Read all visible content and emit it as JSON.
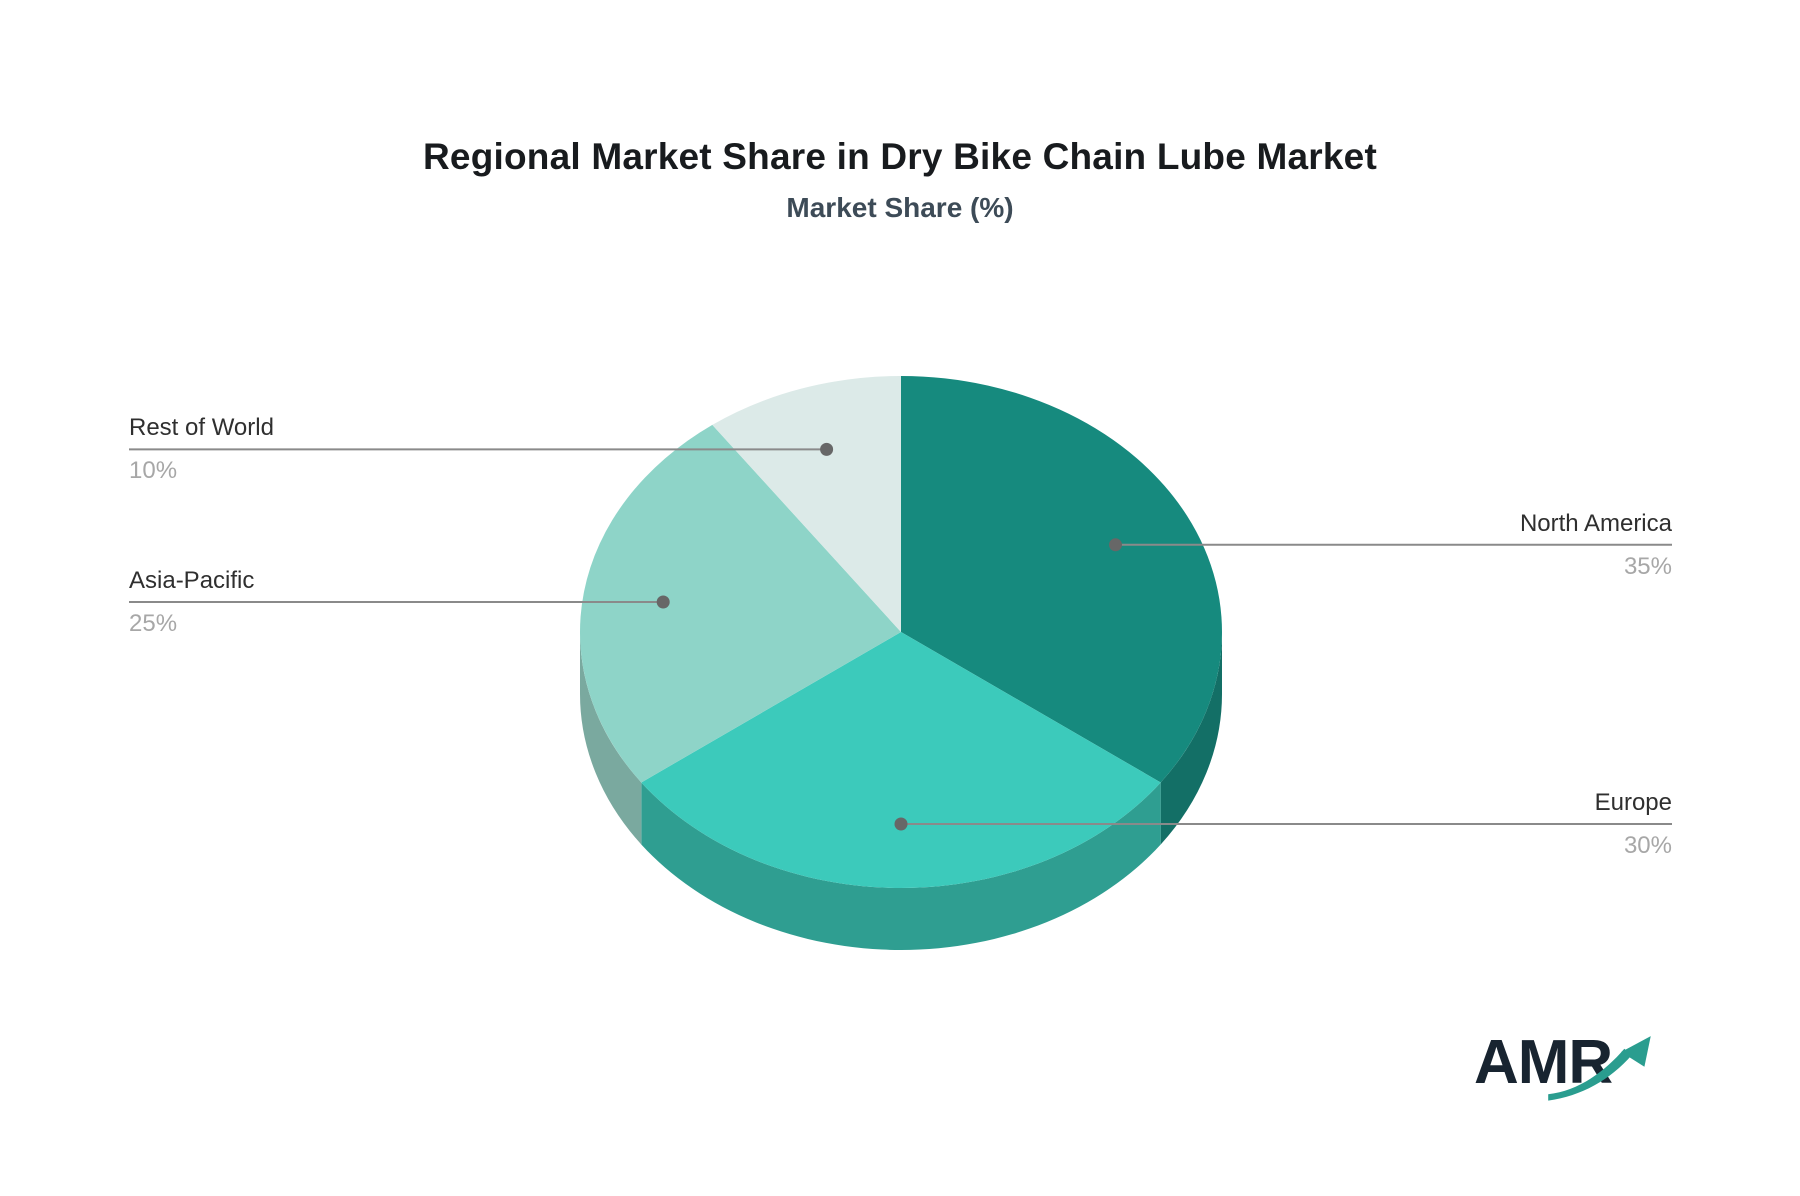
{
  "title": "Regional Market Share in Dry Bike Chain Lube Market",
  "subtitle": "Market Share (%)",
  "chart_data": {
    "type": "pie",
    "effect": "3d",
    "title": "Regional Market Share in Dry Bike Chain Lube Market",
    "subtitle": "Market Share (%)",
    "unit": "%",
    "start_angle_deg": 0,
    "direction": "clockwise",
    "slices": [
      {
        "label": "North America",
        "value": 35,
        "display": "35%",
        "color": "#168a7e",
        "side_color": "#136f66",
        "label_side": "right"
      },
      {
        "label": "Europe",
        "value": 30,
        "display": "30%",
        "color": "#3ccabb",
        "side_color": "#2f9e91",
        "label_side": "right"
      },
      {
        "label": "Asia-Pacific",
        "value": 25,
        "display": "25%",
        "color": "#8ed4c8",
        "side_color": "#7aa99f",
        "label_side": "left"
      },
      {
        "label": "Rest of World",
        "value": 10,
        "display": "10%",
        "color": "#dceae8",
        "side_color": "#b9cdc9",
        "label_side": "left"
      }
    ],
    "labels": {
      "name_color": "#2f2f2f",
      "value_color": "#a7a7a7",
      "leader_line_color": "#8a8a8a",
      "leader_dot_color": "#676767"
    },
    "legend": "none",
    "background": "#ffffff"
  },
  "logo": {
    "text": "AMR",
    "text_color": "#182430",
    "arrow_color": "#2a9d8f"
  }
}
